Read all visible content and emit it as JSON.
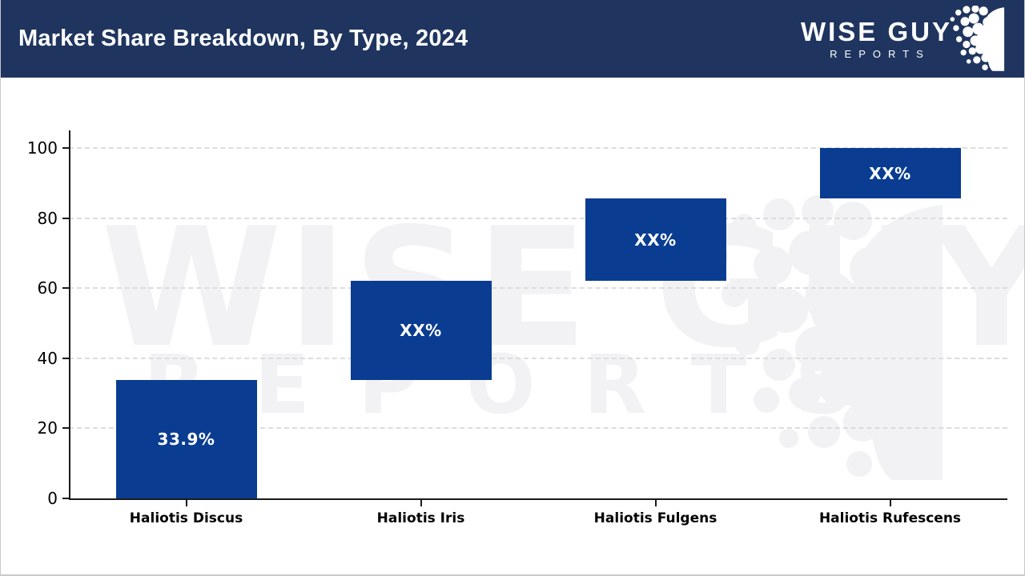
{
  "header": {
    "title": "Market Share Breakdown, By Type, 2024",
    "bg_color": "#1f355f",
    "logo": {
      "wordmark": "WISE GUY",
      "subtitle": "REPORTS"
    }
  },
  "watermark": {
    "line1": "WISE GUY",
    "line2": "REPORTS"
  },
  "chart_data": {
    "type": "bar",
    "subtype": "waterfall",
    "title": "Market Share Breakdown, By Type, 2024",
    "categories": [
      "Haliotis Discus",
      "Haliotis Iris",
      "Haliotis Fulgens",
      "Haliotis Rufescens"
    ],
    "segments": [
      {
        "start": 0,
        "end": 33.9,
        "label": "33.9%"
      },
      {
        "start": 33.9,
        "end": 62.1,
        "label": "XX%"
      },
      {
        "start": 62.1,
        "end": 85.6,
        "label": "XX%"
      },
      {
        "start": 85.6,
        "end": 100,
        "label": "XX%"
      }
    ],
    "xlabel": "",
    "ylabel": "",
    "ylim": [
      0,
      100
    ],
    "yticks": [
      0,
      20,
      40,
      60,
      80,
      100
    ],
    "ytick_labels": [
      "0",
      "20",
      "40",
      "60",
      "80",
      "100"
    ],
    "grid": "horizontal-dashed",
    "legend": "none",
    "bar_color": "#0a3d91",
    "label_color": "#ffffff"
  }
}
